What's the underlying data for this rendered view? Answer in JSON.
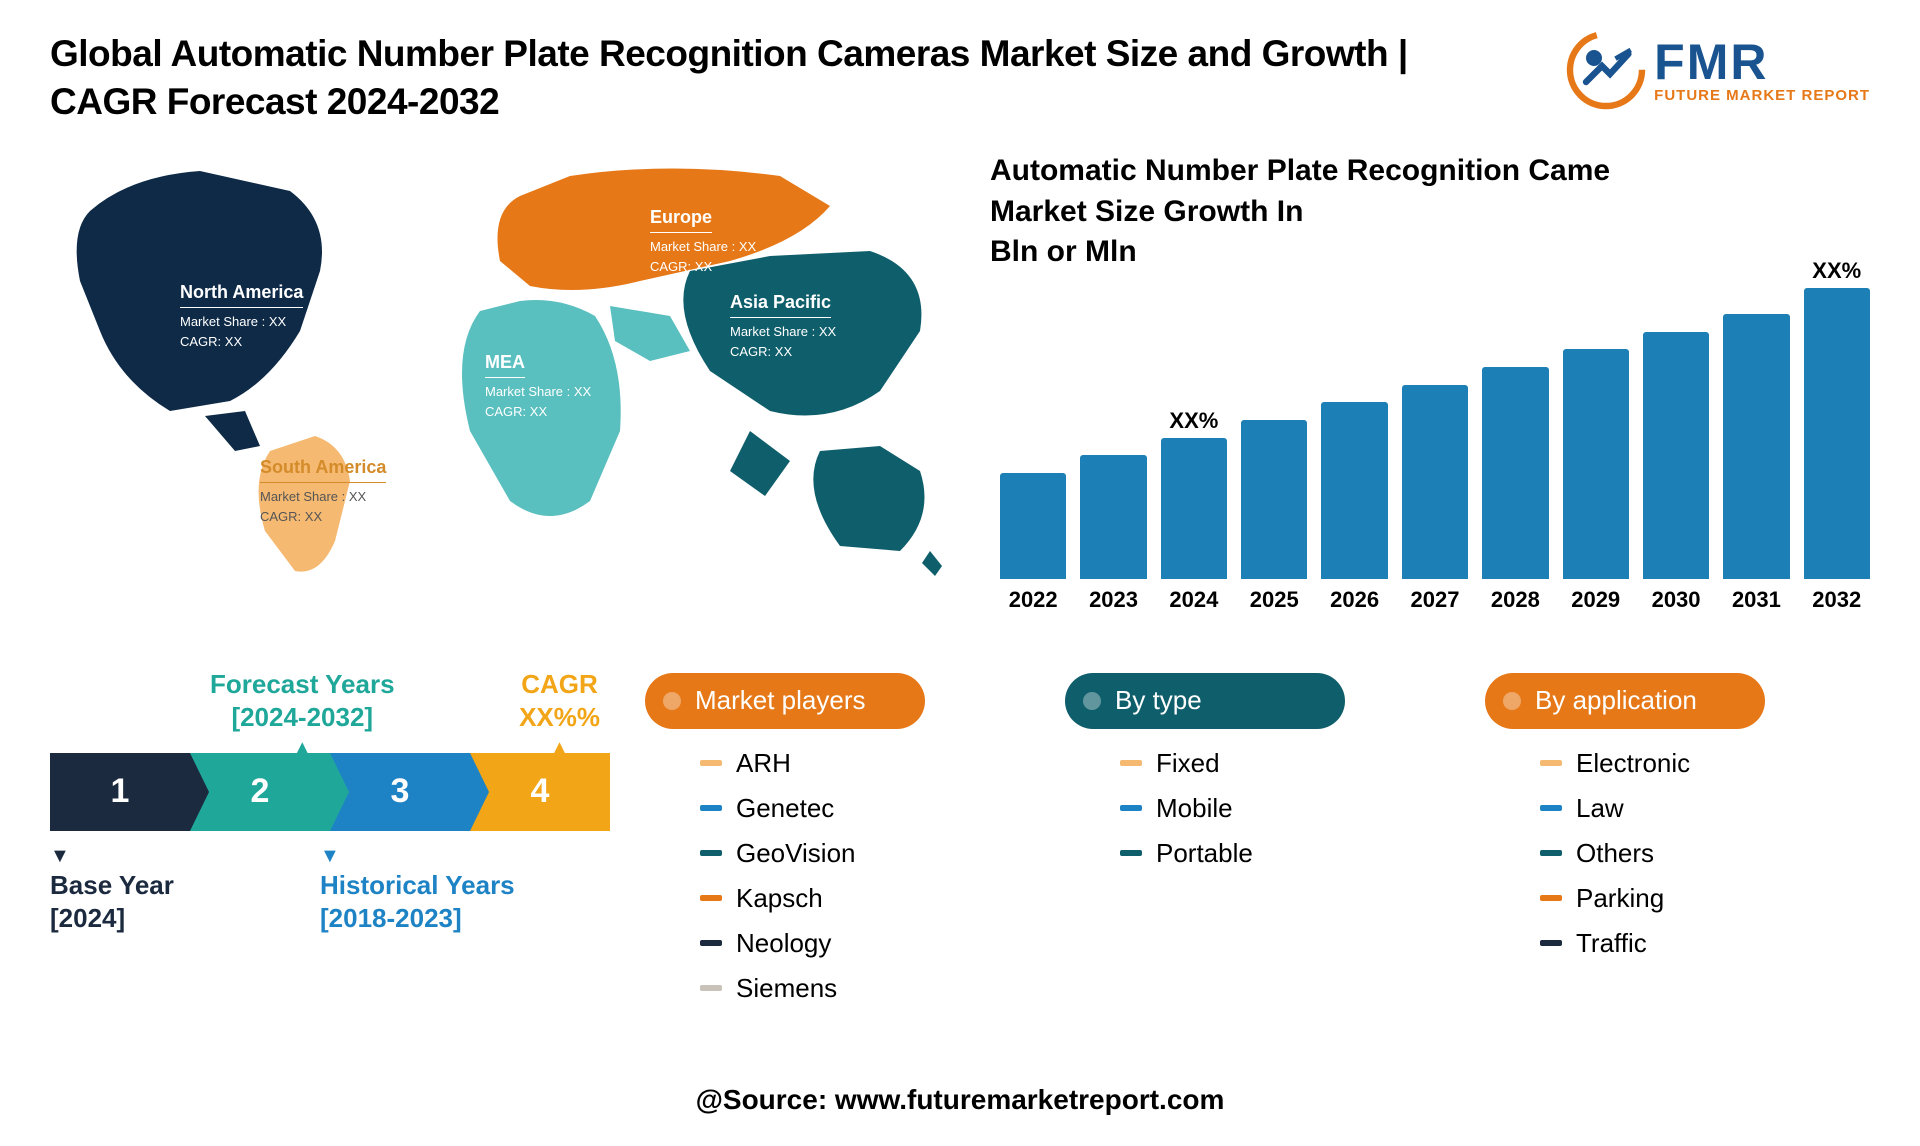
{
  "title": "Global Automatic Number Plate Recognition Cameras Market Size and Growth | CAGR Forecast 2024-2032",
  "logo": {
    "fmr": "FMR",
    "sub": "FUTURE MARKET REPORT"
  },
  "map": {
    "regions": [
      {
        "name": "North America",
        "share": "Market Share : XX",
        "cagr": "CAGR: XX",
        "color": "#0e2a47"
      },
      {
        "name": "South America",
        "share": "Market Share : XX",
        "cagr": "CAGR: XX",
        "color": "#f5b971"
      },
      {
        "name": "Europe",
        "share": "Market Share : XX",
        "cagr": "CAGR: XX",
        "color": "#e67817"
      },
      {
        "name": "MEA",
        "share": "Market Share : XX",
        "cagr": "CAGR: XX",
        "color": "#5abfbf"
      },
      {
        "name": "Asia Pacific",
        "share": "Market Share : XX",
        "cagr": "CAGR: XX",
        "color": "#0f5e6b"
      }
    ]
  },
  "chart": {
    "title_l1": "Automatic Number Plate Recognition Came",
    "title_l2": "Market Size Growth In",
    "title_l3": "Bln or Mln",
    "type": "bar",
    "categories": [
      "2022",
      "2023",
      "2024",
      "2025",
      "2026",
      "2027",
      "2028",
      "2029",
      "2030",
      "2031",
      "2032"
    ],
    "values": [
      120,
      140,
      160,
      180,
      200,
      220,
      240,
      260,
      280,
      300,
      330
    ],
    "annotations": {
      "2": "XX%",
      "10": "XX%"
    },
    "bar_color": "#1c7fb5",
    "label_color": "#000000",
    "ymax": 340
  },
  "timeline": {
    "segments": [
      {
        "num": "1",
        "bg": "#1b2a3e"
      },
      {
        "num": "2",
        "bg": "#1fa89a"
      },
      {
        "num": "3",
        "bg": "#1d83c5"
      },
      {
        "num": "4",
        "bg": "#f2a516"
      }
    ],
    "annot_top_left": {
      "l1": "Forecast Years",
      "l2": "[2024-2032]",
      "color": "#1fa89a"
    },
    "annot_top_right": {
      "l1": "CAGR",
      "l2": "XX%%",
      "color": "#f2a516"
    },
    "annot_bot_left": {
      "l1": "Base Year",
      "l2": "[2024]",
      "color": "#1b2a3e"
    },
    "annot_bot_right": {
      "l1": "Historical Years",
      "l2": "[2018-2023]",
      "color": "#1d83c5"
    }
  },
  "pills": {
    "players": {
      "title": "Market players",
      "bg": "#e67817",
      "items": [
        {
          "label": "ARH",
          "color": "#f5b971"
        },
        {
          "label": "Genetec",
          "color": "#1d83c5"
        },
        {
          "label": "GeoVision",
          "color": "#0f5e6b"
        },
        {
          "label": "Kapsch",
          "color": "#e67817"
        },
        {
          "label": "Neology",
          "color": "#1b2a3e"
        },
        {
          "label": "Siemens",
          "color": "#c9c2b8"
        }
      ]
    },
    "type": {
      "title": "By type",
      "bg": "#0f5e6b",
      "items": [
        {
          "label": "Fixed",
          "color": "#f5b971"
        },
        {
          "label": "Mobile",
          "color": "#1d83c5"
        },
        {
          "label": "Portable",
          "color": "#0f5e6b"
        }
      ]
    },
    "application": {
      "title": "By application",
      "bg": "#e67817",
      "items": [
        {
          "label": "Electronic",
          "color": "#f5b971"
        },
        {
          "label": "Law",
          "color": "#1d83c5"
        },
        {
          "label": "Others",
          "color": "#0f5e6b"
        },
        {
          "label": "Parking",
          "color": "#e67817"
        },
        {
          "label": "Traffic",
          "color": "#1b2a3e"
        }
      ]
    }
  },
  "source": "@Source: www.futuremarketreport.com"
}
